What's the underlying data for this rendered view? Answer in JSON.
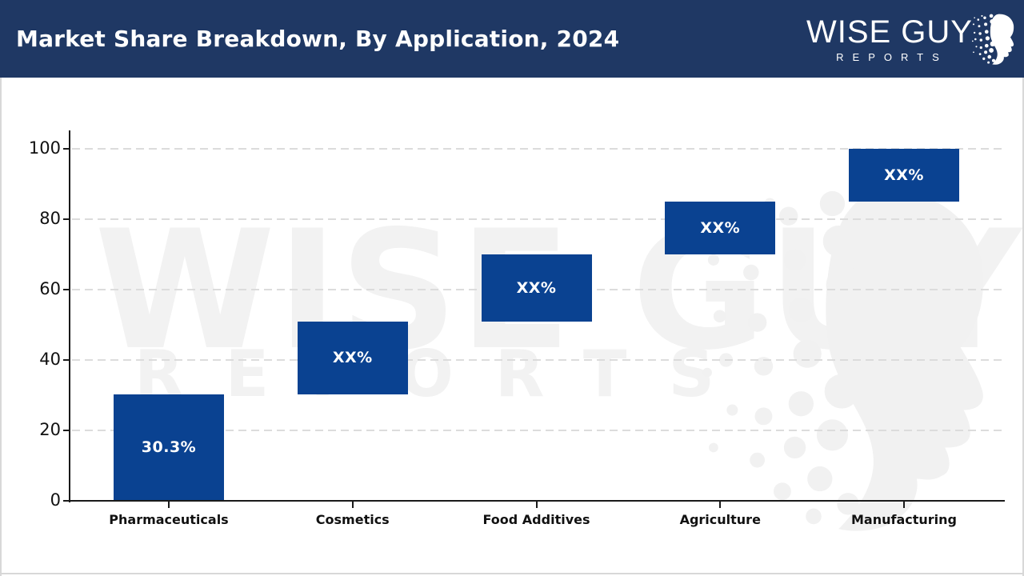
{
  "header": {
    "title": "Market Share Breakdown, By Application, 2024",
    "logo": {
      "wordmark": "WISE GUY",
      "subtext": "REPORTS"
    }
  },
  "watermark": {
    "line1": "WISE GUY",
    "line2": "REPORTS"
  },
  "chart_data": {
    "type": "bar",
    "subtype": "floating-waterfall-share",
    "title": "Market Share Breakdown, By Application, 2024",
    "categories": [
      "Pharmaceuticals",
      "Cosmetics",
      "Food Additives",
      "Agriculture",
      "Manufacturing"
    ],
    "segments": [
      {
        "category": "Pharmaceuticals",
        "start": 0,
        "end": 30.3,
        "label": "30.3%"
      },
      {
        "category": "Cosmetics",
        "start": 30.3,
        "end": 50.9,
        "label": "XX%"
      },
      {
        "category": "Food Additives",
        "start": 50.9,
        "end": 70.0,
        "label": "XX%"
      },
      {
        "category": "Agriculture",
        "start": 70.0,
        "end": 85.0,
        "label": "XX%"
      },
      {
        "category": "Manufacturing",
        "start": 85.0,
        "end": 100.0,
        "label": "XX%"
      }
    ],
    "ylim": [
      0,
      100
    ],
    "yticks": [
      0,
      20,
      40,
      60,
      80,
      100
    ],
    "grid": "horizontal-dashed",
    "legend": "none",
    "colors": {
      "bar": "#0a4291",
      "bar_label": "#ffffff",
      "axis": "#1a1a1a",
      "gridline": "#dcdcdc",
      "header_bg": "#1f3864",
      "watermark": "#f2f2f2"
    }
  }
}
